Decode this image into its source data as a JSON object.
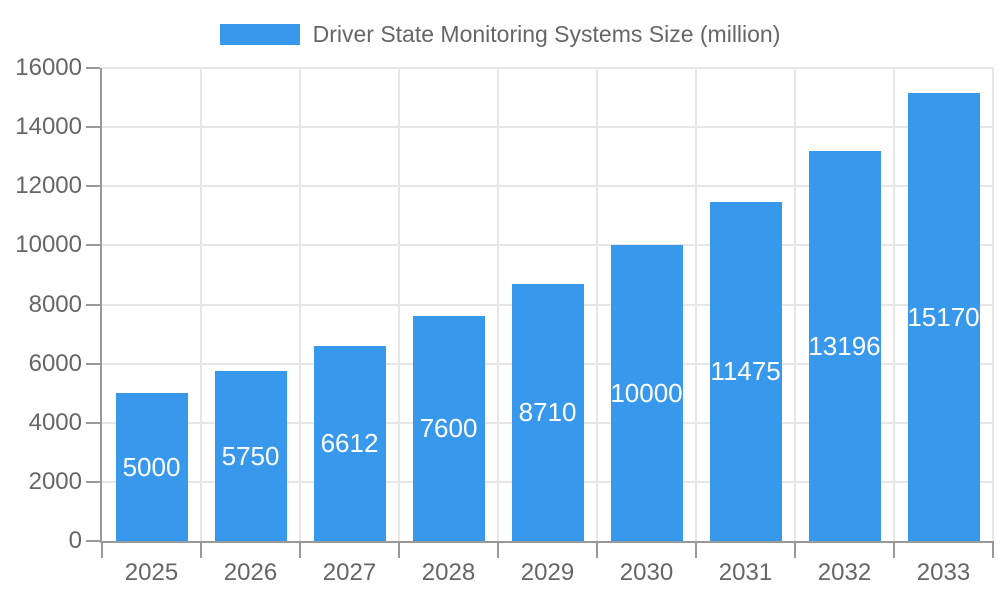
{
  "legend": {
    "label": "Driver State Monitoring Systems Size (million)"
  },
  "colors": {
    "bar": "#3899EC",
    "grid": "#E6E6E6",
    "axis": "#999999",
    "tick_label": "#666666",
    "legend_label": "#666666",
    "value_label": "#FFFFFF",
    "background": "#FFFFFF"
  },
  "chart_data": {
    "type": "bar",
    "title": "Driver State Monitoring Systems Size (million)",
    "series_name": "Driver State Monitoring Systems Size (million)",
    "categories": [
      "2025",
      "2026",
      "2027",
      "2028",
      "2029",
      "2030",
      "2031",
      "2032",
      "2033"
    ],
    "values": [
      5000,
      5750,
      6612,
      7600,
      8710,
      10000,
      11475,
      13196,
      15170
    ],
    "xlabel": "",
    "ylabel": "",
    "ylim": [
      0,
      16000
    ],
    "ytick_step": 2000,
    "ytick_labels_top_to_bottom": [
      "16000",
      "14000",
      "12000",
      "10000",
      "8000",
      "6000",
      "4000",
      "2000",
      "0"
    ],
    "grid": true,
    "legend_position": "top",
    "value_label_position": "inside-center"
  }
}
